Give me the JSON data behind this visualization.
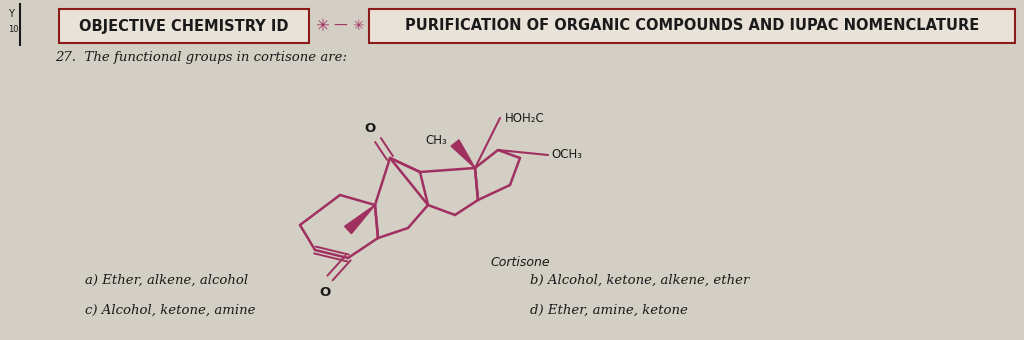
{
  "bg_color": "#d4cfc5",
  "header_box1_text": "OBJECTIVE CHEMISTRY ID",
  "header_box1_bg": "#e8e2d8",
  "header_box1_border": "#8B1A1A",
  "header_box2_text": "PURIFICATION OF ORGANIC COMPOUNDS AND IUPAC NOMENCLATURE",
  "header_box2_bg": "#e8e2d8",
  "header_box2_border": "#8B1A1A",
  "question_number": "27.",
  "question_text": "The functional groups in cortisone are:",
  "structure_label": "Cortisone",
  "hoh2c_label": "HOH₂C",
  "ch3_label": "CH₃",
  "och3_label": "OCH₃",
  "o_label1": "O",
  "o_label2": "O",
  "molecule_color": "#a03060",
  "text_color": "#1a1a1a",
  "answer_a": "a) Ether, alkene, alcohol",
  "answer_b": "b) Alcohol, ketone, alkene, ether",
  "answer_c": "c) Alcohol, ketone, amine",
  "answer_d": "d) Ether, amine, ketone",
  "font_size_header": 10.5,
  "font_size_question": 9.5,
  "font_size_answers": 9.5,
  "font_size_struct": 8.5,
  "deco_color": "#a03060"
}
